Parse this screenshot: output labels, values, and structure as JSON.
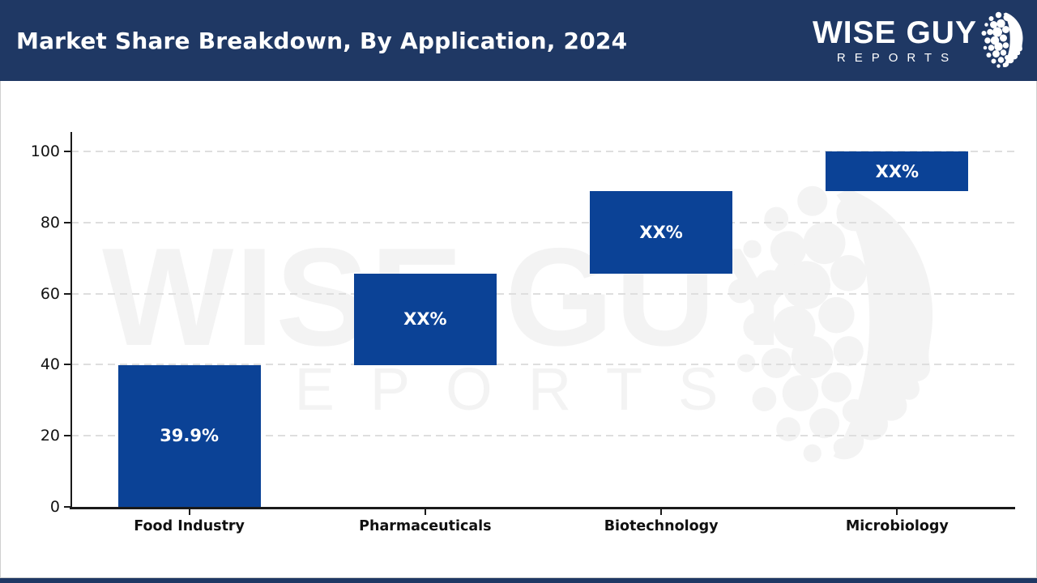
{
  "header": {
    "title": "Market Share Breakdown, By Application, 2024",
    "logo": {
      "line1": "WISE GUY",
      "line2": "REPORTS"
    }
  },
  "watermark": {
    "line1": "WISE GUY",
    "line2": "REPORTS"
  },
  "colors": {
    "header_bg": "#1f3864",
    "bar": "#0b4296",
    "watermark": "#f3f3f3",
    "axis": "#1a1a1a"
  },
  "chart_data": {
    "type": "bar",
    "subtype": "waterfall",
    "title": "Market Share Breakdown, By Application, 2024",
    "categories": [
      "Food Industry",
      "Pharmaceuticals",
      "Biotechnology",
      "Microbiology"
    ],
    "segments": [
      {
        "category": "Food Industry",
        "start": 0,
        "end": 39.9,
        "label": "39.9%"
      },
      {
        "category": "Pharmaceuticals",
        "start": 39.9,
        "end": 65.7,
        "label": "XX%"
      },
      {
        "category": "Biotechnology",
        "start": 65.7,
        "end": 88.8,
        "label": "XX%"
      },
      {
        "category": "Microbiology",
        "start": 88.8,
        "end": 100,
        "label": "XX%"
      }
    ],
    "y_ticks": [
      0,
      20,
      40,
      60,
      80,
      100
    ],
    "ylim": [
      0,
      104
    ],
    "grid": "horizontal-dashed",
    "legend": "none",
    "bar_color": "#0b4296",
    "bar_label_color": "#ffffff"
  }
}
